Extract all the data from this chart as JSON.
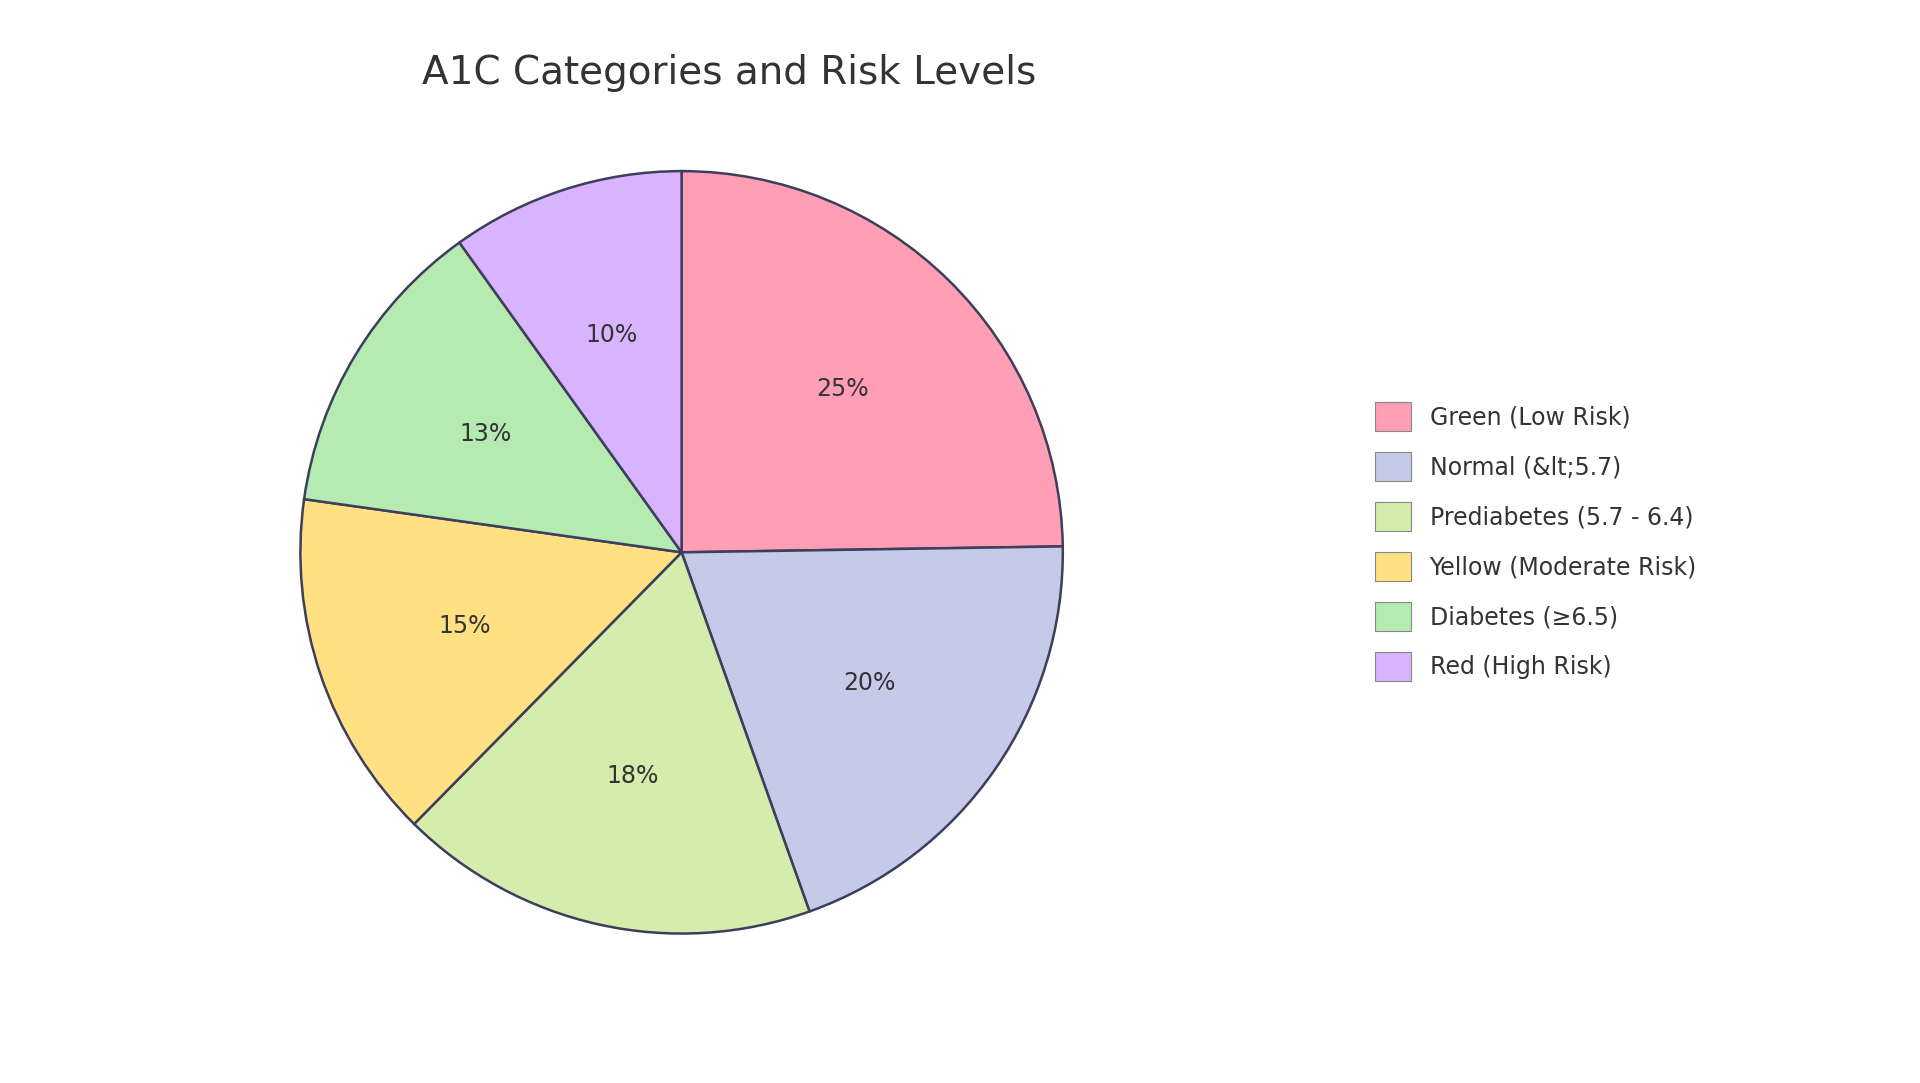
{
  "title": "A1C Categories and Risk Levels",
  "slices": [
    {
      "label": "Green (Low Risk)",
      "value": 25,
      "color": "#FF9EB5"
    },
    {
      "label": "Normal (&lt;5.7)",
      "value": 20,
      "color": "#C5CAE9"
    },
    {
      "label": "Prediabetes (5.7 - 6.4)",
      "value": 18,
      "color": "#D4EDAC"
    },
    {
      "label": "Yellow (Moderate Risk)",
      "value": 15,
      "color": "#FFE082"
    },
    {
      "label": "Diabetes (≥6.5)",
      "value": 13,
      "color": "#B5EAB0"
    },
    {
      "label": "Red (High Risk)",
      "value": 10,
      "color": "#D8B4FE"
    }
  ],
  "title_fontsize": 28,
  "label_fontsize": 17,
  "legend_fontsize": 17,
  "background_color": "#FFFFFF",
  "text_color": "#333333",
  "edge_color": "#3D3D5C",
  "edge_width": 1.8
}
